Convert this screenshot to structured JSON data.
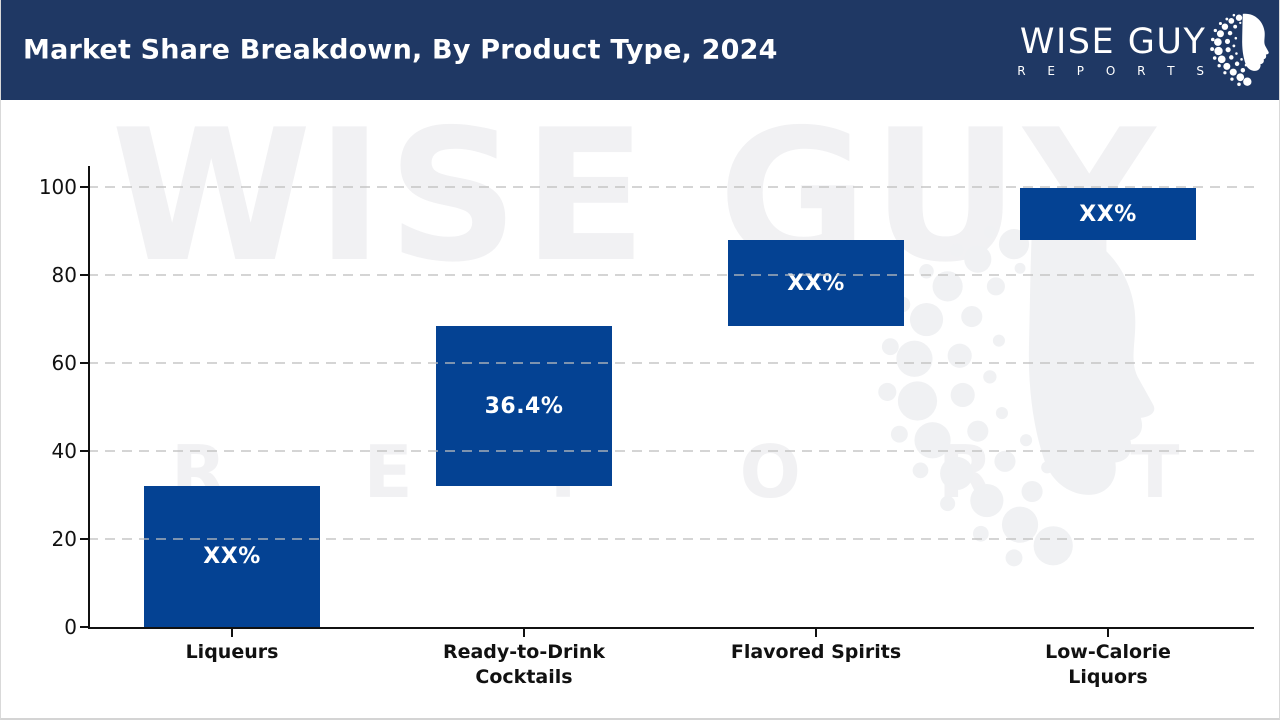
{
  "page": {
    "background": "#ffffff",
    "border_color": "#d9d9d9"
  },
  "header": {
    "title": "Market Share Breakdown, By Product Type, 2024",
    "background_color": "#1f3864",
    "logo": {
      "brand_line1": "WISE GUY",
      "brand_line2": "R E P O R T S"
    }
  },
  "watermark": {
    "line1": "WISE GUY",
    "line2": "R E P O R T S"
  },
  "chart_data": {
    "type": "bar",
    "subtype": "floating-waterfall",
    "title": "Market Share Breakdown, By Product Type, 2024",
    "categories": [
      "Liqueurs",
      "Ready-to-Drink Cocktails",
      "Flavored Spirits",
      "Low-Calorie Liquors"
    ],
    "category_lines": [
      [
        "Liqueurs"
      ],
      [
        "Ready-to-Drink",
        "Cocktails"
      ],
      [
        "Flavored Spirits"
      ],
      [
        "Low-Calorie",
        "Liquors"
      ]
    ],
    "segments": [
      {
        "category": "Liqueurs",
        "start": 0,
        "end": 32,
        "label": "XX%"
      },
      {
        "category": "Ready-to-Drink Cocktails",
        "start": 32,
        "end": 68.4,
        "label": "36.4%"
      },
      {
        "category": "Flavored Spirits",
        "start": 68.4,
        "end": 87.9,
        "label": "XX%"
      },
      {
        "category": "Low-Calorie Liquors",
        "start": 87.9,
        "end": 99.8,
        "label": "XX%"
      }
    ],
    "ylim": [
      0,
      100
    ],
    "yticks": [
      0,
      20,
      40,
      60,
      80,
      100
    ],
    "xlabel": "",
    "ylabel": "",
    "grid": "horizontal-dashed",
    "legend": "none",
    "bar_color": "#044293",
    "value_label_color": "#ffffff",
    "axis_color": "#111111"
  }
}
